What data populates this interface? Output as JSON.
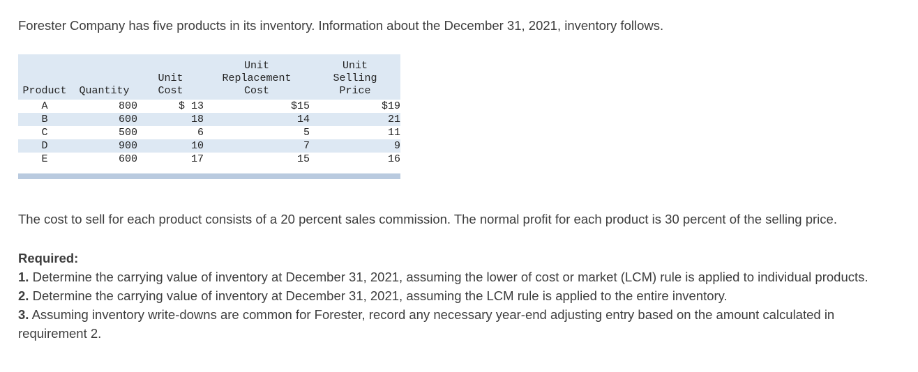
{
  "intro": "Forester Company has five products in its inventory. Information about the December 31, 2021, inventory follows.",
  "colors": {
    "table_header_bg": "#dde8f3",
    "table_stripe_bg": "#dde8f3",
    "table_bottom_bar": "#b9cadf"
  },
  "table": {
    "headers": [
      [
        "Product"
      ],
      [
        "Quantity"
      ],
      [
        "Unit",
        "Cost"
      ],
      [
        "Unit",
        "Replacement",
        "Cost"
      ],
      [
        "Unit",
        "Selling",
        "Price"
      ]
    ],
    "rows": [
      [
        "A",
        "800",
        "$ 13",
        "$15",
        "$19"
      ],
      [
        "B",
        "600",
        "18",
        "14",
        "21"
      ],
      [
        "C",
        "500",
        "6",
        "5",
        "11"
      ],
      [
        "D",
        "900",
        "10",
        "7",
        "9"
      ],
      [
        "E",
        "600",
        "17",
        "15",
        "16"
      ]
    ]
  },
  "para": "The cost to sell for each product consists of a 20 percent sales commission. The normal profit for each product is 30 percent of the selling price.",
  "required": {
    "label": "Required:",
    "items": [
      {
        "num": "1.",
        "text": "Determine the carrying value of inventory at December 31, 2021, assuming the lower of cost or market (LCM) rule is applied to individual products."
      },
      {
        "num": "2.",
        "text": "Determine the carrying value of inventory at December 31, 2021, assuming the LCM rule is applied to the entire inventory."
      },
      {
        "num": "3.",
        "text": "Assuming inventory write-downs are common for Forester, record any necessary year-end adjusting entry based on the amount calculated in requirement 2."
      }
    ]
  }
}
